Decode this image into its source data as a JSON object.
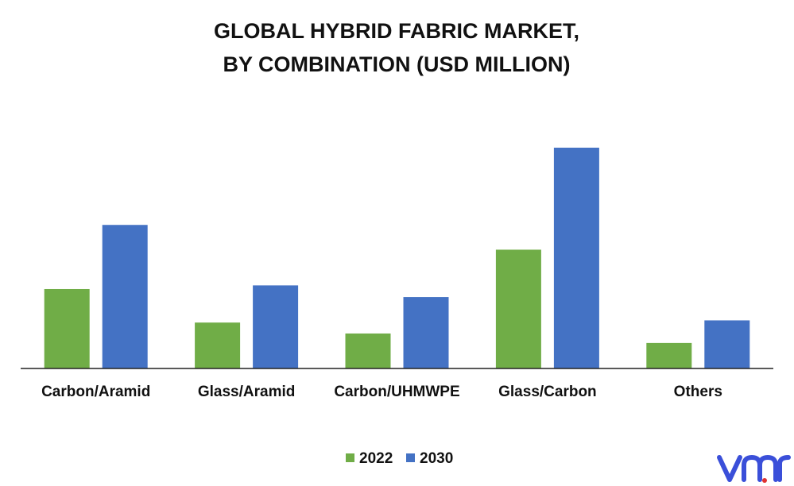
{
  "chart_data": {
    "type": "bar",
    "title_lines": [
      "GLOBAL HYBRID FABRIC MARKET,",
      "BY COMBINATION (USD MILLION)"
    ],
    "categories": [
      "Carbon/Aramid",
      "Glass/Aramid",
      "Carbon/UHMWPE",
      "Glass/Carbon",
      "Others"
    ],
    "series": [
      {
        "name": "2022",
        "color": "#70ad47",
        "values": [
          109,
          63,
          48,
          163,
          35
        ]
      },
      {
        "name": "2030",
        "color": "#4472c4",
        "values": [
          197,
          114,
          98,
          303,
          66
        ]
      }
    ],
    "ylim": [
      0,
      330
    ],
    "grid": false,
    "legend_position": "bottom",
    "xlabel": "",
    "ylabel": ""
  },
  "logo": {
    "text": "vmr",
    "color": "#3a4fd9",
    "accent": "#e03131",
    "icon": "vmr-logo"
  }
}
